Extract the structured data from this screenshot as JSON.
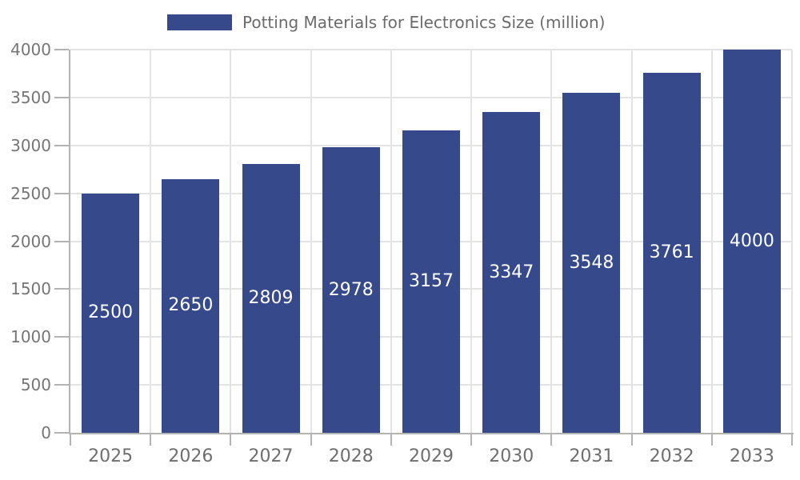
{
  "colors": {
    "bar": "#364a8b",
    "axis_line": "#b3b3b3",
    "gridline": "#e3e3e3",
    "y_tick_label": "#757575",
    "x_tick_label": "#6e6e6e",
    "title_text": "#6b6b6b",
    "value_label": "#ffffff",
    "background": "#ffffff"
  },
  "legend": {
    "label": "Potting Materials for Electronics Size (million)"
  },
  "chart_data": {
    "type": "bar",
    "title": "Potting Materials for Electronics Size (million)",
    "series_name": "Potting Materials for Electronics Size (million)",
    "categories": [
      "2025",
      "2026",
      "2027",
      "2028",
      "2029",
      "2030",
      "2031",
      "2032",
      "2033"
    ],
    "values": [
      2500,
      2650,
      2809,
      2978,
      3157,
      3347,
      3548,
      3761,
      4000
    ],
    "xlabel": "",
    "ylabel": "",
    "ylim": [
      0,
      4000
    ],
    "yticks": [
      0,
      500,
      1000,
      1500,
      2000,
      2500,
      3000,
      3500,
      4000
    ],
    "grid": true,
    "legend_position": "top",
    "value_labels": "inside-center",
    "bar_color": "#364a8b"
  }
}
